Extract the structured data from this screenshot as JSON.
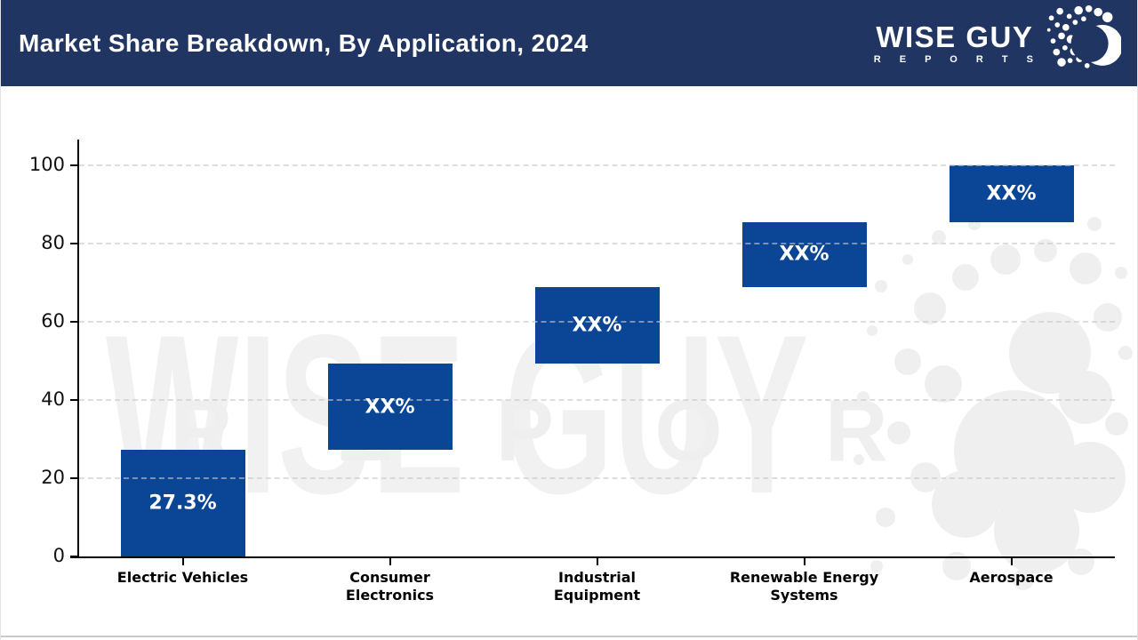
{
  "header": {
    "title": "Market Share Breakdown, By Application, 2024",
    "logo": {
      "line1": "WISE GUY",
      "line2": "R E P O R T S",
      "icon": "dot-face-icon"
    }
  },
  "watermark": {
    "line1": "WISE GUY",
    "line2": "R E P O R T S"
  },
  "chart_data": {
    "type": "bar",
    "subtype": "waterfall",
    "title": "Market Share Breakdown, By Application, 2024",
    "categories": [
      "Electric Vehicles",
      "Consumer Electronics",
      "Industrial Equipment",
      "Renewable Energy Systems",
      "Aerospace"
    ],
    "category_label_lines": [
      [
        "Electric Vehicles"
      ],
      [
        "Consumer",
        "Electronics"
      ],
      [
        "Industrial",
        "Equipment"
      ],
      [
        "Renewable Energy",
        "Systems"
      ],
      [
        "Aerospace"
      ]
    ],
    "segments": [
      {
        "category": "Electric Vehicles",
        "start": 0,
        "end": 27.3,
        "label": "27.3%"
      },
      {
        "category": "Consumer Electronics",
        "start": 27.3,
        "end": 49.3,
        "label": "XX%"
      },
      {
        "category": "Industrial Equipment",
        "start": 49.3,
        "end": 69.0,
        "label": "XX%"
      },
      {
        "category": "Renewable Energy Systems",
        "start": 69.0,
        "end": 85.5,
        "label": "XX%"
      },
      {
        "category": "Aerospace",
        "start": 85.5,
        "end": 100.0,
        "label": "XX%"
      }
    ],
    "yticks": [
      0,
      20,
      40,
      60,
      80,
      100
    ],
    "ylim": [
      0,
      106
    ],
    "xlabel": "",
    "ylabel": "",
    "grid": "horizontal-dashed",
    "legend_position": "none",
    "colors": {
      "bar": "#0a4596",
      "header_bg": "#213562",
      "grid": "#cccccc",
      "axis": "#000000",
      "value_label": "#ffffff",
      "watermark": "#f1f1f1"
    }
  }
}
